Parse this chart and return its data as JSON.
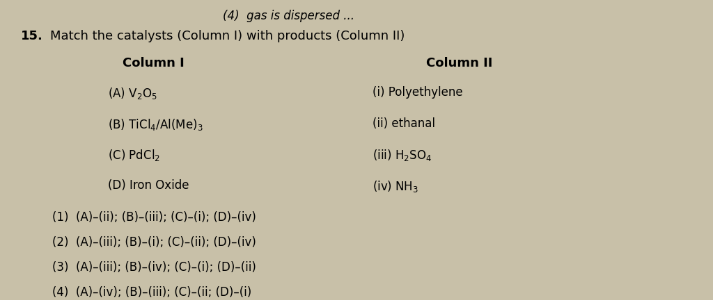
{
  "background_color": "#c8c0a8",
  "question_number": "15.",
  "question_text": "Match the catalysts (Column I) with products (Column II)",
  "col1_header": "Column I",
  "col2_header": "Column II",
  "col1_items": [
    "(A) V$_2$O$_5$",
    "(B) TiCl$_4$/Al(Me)$_3$",
    "(C) PdCl$_2$",
    "(D) Iron Oxide"
  ],
  "col2_items": [
    "(i) Polyethylene",
    "(ii) ethanal",
    "(iii) H$_2$SO$_4$",
    "(iv) NH$_3$"
  ],
  "options": [
    "(1)  (A)–(ii); (B)–(iii); (C)–(i); (D)–(iv)",
    "(2)  (A)–(iii); (B)–(i); (C)–(ii); (D)–(iv)",
    "(3)  (A)–(iii); (B)–(iv); (C)–(i); (D)–(ii)",
    "(4)  (A)–(iv); (B)–(iii); (C)–(ii; (D)–(i)"
  ],
  "top_text": "(4)  gas is dispersed ...",
  "font_size_question": 13,
  "font_size_header": 13,
  "font_size_items": 12,
  "font_size_options": 12
}
